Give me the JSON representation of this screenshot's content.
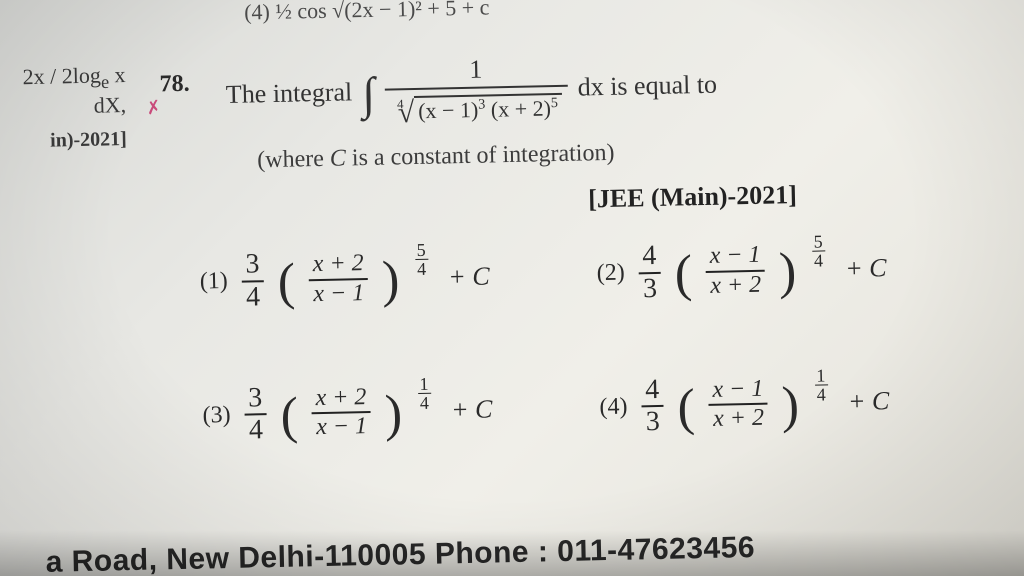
{
  "top_fragment": "(4)  ½ cos √(2x − 1)² + 5 + c",
  "left_margin": {
    "line1_html": "2x / 2log<sub>e</sub> x  dX,",
    "line2": "in)-2021]"
  },
  "question": {
    "number": "78.",
    "tick": "✗",
    "lead": "The integral",
    "integrand_num": "1",
    "root_degree": "4",
    "root_arg_html": "(x − 1)<sup>3</sup> (x + 2)<sup>5</sup>",
    "tail": "dx  is equal to",
    "note_html": "(where <i>C</i> is a constant of integration)",
    "source": "[JEE (Main)-2021]"
  },
  "options": [
    {
      "label": "(1)",
      "coef_n": "3",
      "coef_d": "4",
      "inner_n": "x + 2",
      "inner_d": "x − 1",
      "pow_n": "5",
      "pow_d": "4",
      "tail": "+ C"
    },
    {
      "label": "(2)",
      "coef_n": "4",
      "coef_d": "3",
      "inner_n": "x − 1",
      "inner_d": "x + 2",
      "pow_n": "5",
      "pow_d": "4",
      "tail": "+ C"
    },
    {
      "label": "(3)",
      "coef_n": "3",
      "coef_d": "4",
      "inner_n": "x + 2",
      "inner_d": "x − 1",
      "pow_n": "1",
      "pow_d": "4",
      "tail": "+ C"
    },
    {
      "label": "(4)",
      "coef_n": "4",
      "coef_d": "3",
      "inner_n": "x − 1",
      "inner_d": "x + 2",
      "pow_n": "1",
      "pow_d": "4",
      "tail": "+ C"
    }
  ],
  "footer": "a Road, New Delhi-110005 Phone : 011-47623456"
}
